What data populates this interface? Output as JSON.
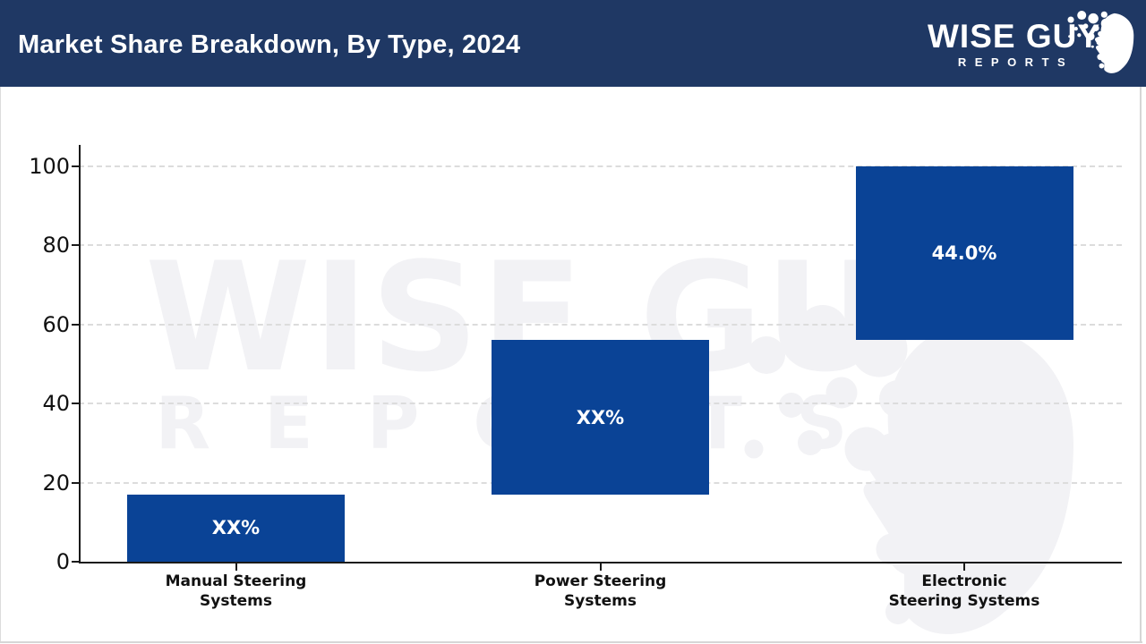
{
  "header": {
    "title": "Market Share Breakdown, By Type, 2024",
    "logo": {
      "line1": "WISE GUY",
      "line2": "REPORTS"
    }
  },
  "watermark": {
    "line1": "WISE GUY",
    "line2": "REPORTS"
  },
  "colors": {
    "header_bg": "#1f3864",
    "bar_blue": "#0a4396",
    "bar_label_white": "#ffffff",
    "grid_gray": "#dcdcdc",
    "axis_black": "#1a1a1a",
    "watermark_gray": "#f2f2f5"
  },
  "chart_data": {
    "type": "bar",
    "style": "floating-segment-waterfall",
    "title": "Market Share Breakdown, By Type, 2024",
    "categories": [
      "Manual Steering Systems",
      "Power Steering Systems",
      "Electronic Steering Systems"
    ],
    "category_label_lines": [
      [
        "Manual Steering",
        "Systems"
      ],
      [
        "Power Steering",
        "Systems"
      ],
      [
        "Electronic",
        "Steering Systems"
      ]
    ],
    "segments": [
      {
        "category": "Manual Steering Systems",
        "from": 0,
        "to": 17,
        "label": "XX%"
      },
      {
        "category": "Power Steering Systems",
        "from": 17,
        "to": 56,
        "label": "XX%"
      },
      {
        "category": "Electronic Steering Systems",
        "from": 56,
        "to": 100,
        "label": "44.0%"
      }
    ],
    "yticks": [
      0,
      20,
      40,
      60,
      80,
      100
    ],
    "ylim": [
      0,
      105.4
    ],
    "xlabel": "",
    "ylabel": "",
    "grid": "horizontal-dashed",
    "legend": "none",
    "bar_color": "#0a4396",
    "bar_label_color": "#ffffff"
  }
}
